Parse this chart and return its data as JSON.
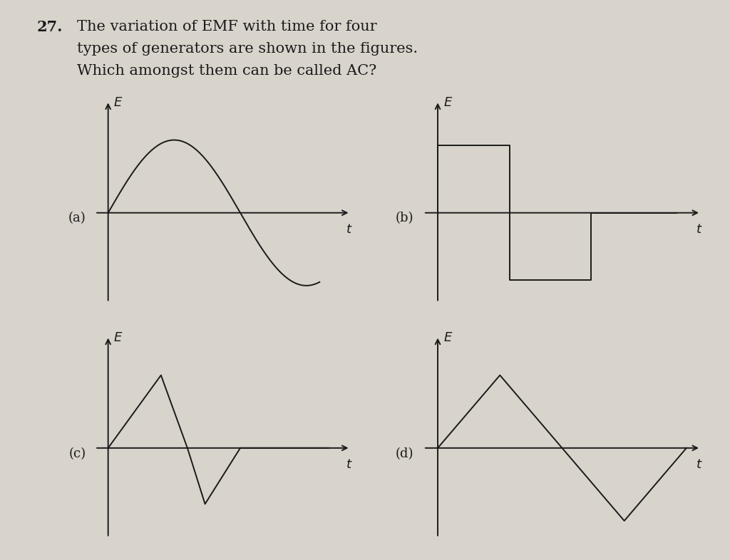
{
  "background_color": "#d8d3cb",
  "line_color": "#1a1a1a",
  "text_color": "#1a1a1a",
  "title_bold": "27.",
  "title_rest": " The variation of EMF with time for four",
  "title_line2": "     types of generators are shown in the figures.",
  "title_line3": "     Which amongst them can be called AC?",
  "subplot_labels": [
    "(a)",
    "(b)",
    "(c)",
    "(d)"
  ],
  "lw": 1.4,
  "fontsize_label": 13,
  "fontsize_title": 15
}
